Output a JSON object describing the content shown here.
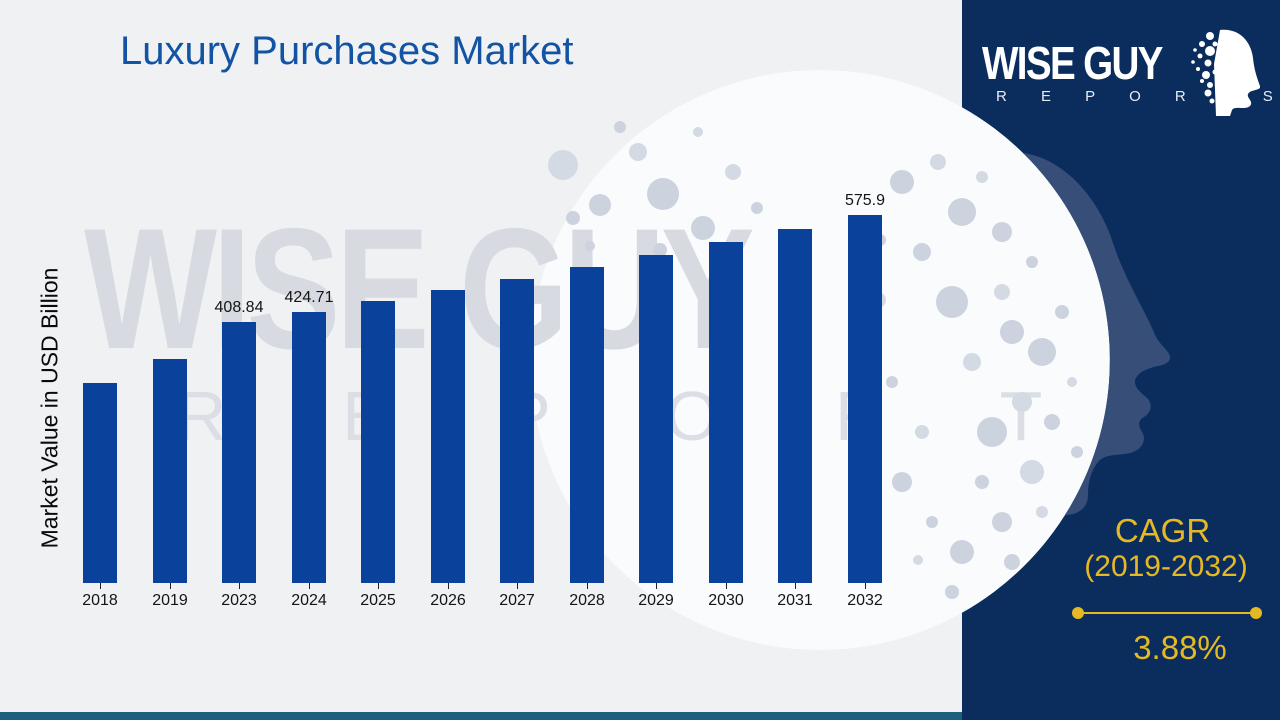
{
  "page": {
    "background": "#f0f1f3",
    "bottom_bar_color": "#1d5f7e"
  },
  "header": {
    "title": "Luxury Purchases Market",
    "title_color": "#1254a3"
  },
  "watermark": {
    "line1": "WISE GUY",
    "line2": "R E P O R T"
  },
  "chart_data": {
    "type": "bar",
    "title": "Luxury Purchases Market",
    "xlabel": "",
    "ylabel": "Market Value in USD Billion",
    "categories": [
      "2018",
      "2019",
      "2023",
      "2024",
      "2025",
      "2026",
      "2027",
      "2028",
      "2029",
      "2030",
      "2031",
      "2032"
    ],
    "values": [
      313.2,
      350.9,
      408.84,
      424.71,
      441.19,
      458.31,
      476.09,
      494.56,
      513.75,
      533.68,
      554.39,
      575.9
    ],
    "data_labels": [
      "",
      "",
      "408.84",
      "424.71",
      "",
      "",
      "",
      "",
      "",
      "",
      "",
      "575.9"
    ],
    "bar_color": "#0a429b",
    "grid": false,
    "legend": null
  },
  "brand_panel": {
    "background": "#0a2d5e",
    "accent_color": "#e6b923",
    "logo_line1": "WISE GUY",
    "logo_line2": "R E P O R T S",
    "cagr_label": "CAGR",
    "cagr_range": "(2019-2032)",
    "cagr_value": "3.88%"
  }
}
